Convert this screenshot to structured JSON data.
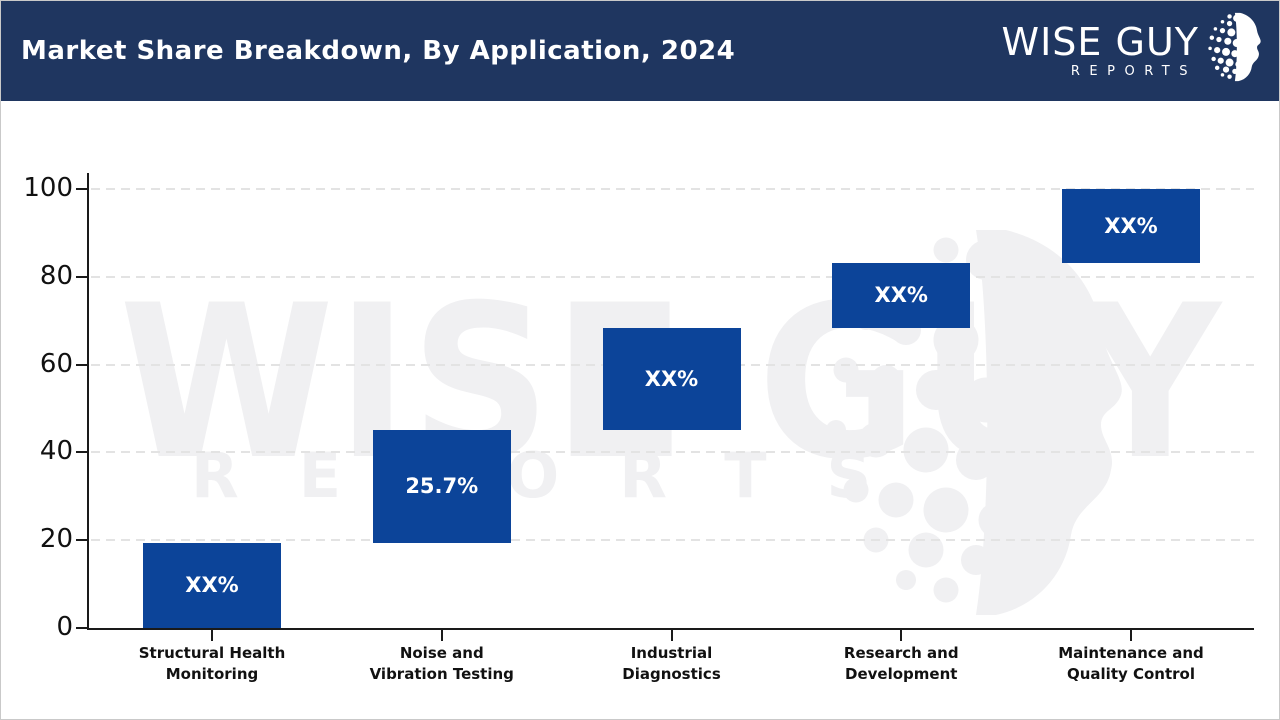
{
  "header": {
    "title": "Market Share Breakdown, By Application, 2024",
    "logo": {
      "line1": "WISE GUY",
      "line2": "REPORTS"
    }
  },
  "watermark": {
    "line1": "WISE GUY",
    "line2": "REPORTS"
  },
  "colors": {
    "header_bg": "#1f3660",
    "bar": "#0c4499",
    "bar_label": "#ffffff",
    "axis": "#1a1a1a",
    "gridline": "#e3e3e3",
    "tick_label": "#111111",
    "watermark": "#f0f0f2",
    "title_text": "#ffffff"
  },
  "chart_data": {
    "type": "bar",
    "subtype": "waterfall",
    "title": "Market Share Breakdown, By Application, 2024",
    "categories": [
      "Structural Health Monitoring",
      "Noise and Vibration Testing",
      "Industrial Diagnostics",
      "Research and Development",
      "Maintenance and Quality Control"
    ],
    "categories_lines": [
      [
        "Structural Health",
        "Monitoring"
      ],
      [
        "Noise and",
        "Vibration Testing"
      ],
      [
        "Industrial",
        "Diagnostics"
      ],
      [
        "Research and",
        "Development"
      ],
      [
        "Maintenance and",
        "Quality Control"
      ]
    ],
    "segments": [
      {
        "label": "XX%",
        "start": 0,
        "end": 19.4
      },
      {
        "label": "25.7%",
        "start": 19.4,
        "end": 45.1
      },
      {
        "label": "XX%",
        "start": 45.1,
        "end": 68.4
      },
      {
        "label": "XX%",
        "start": 68.4,
        "end": 83.1
      },
      {
        "label": "XX%",
        "start": 83.1,
        "end": 100
      }
    ],
    "yticks": [
      0,
      20,
      40,
      60,
      80,
      100
    ],
    "ylim": [
      0,
      100
    ],
    "xlabel": "",
    "ylabel": "",
    "grid": "horizontal-dashed",
    "legend": "none"
  }
}
